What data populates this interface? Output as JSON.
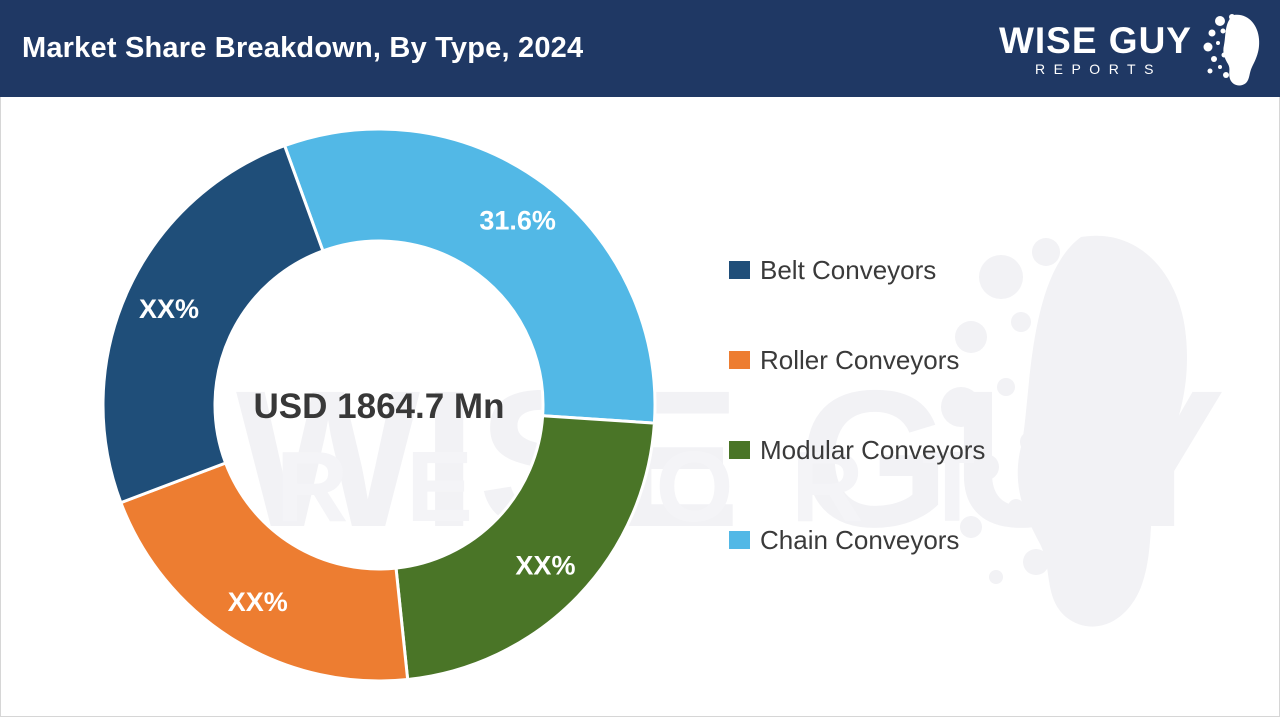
{
  "header": {
    "title": "Market Share Breakdown, By Type, 2024",
    "logo": {
      "line1": "WISE GUY",
      "line2": "REPORTS"
    }
  },
  "watermark": {
    "line1": "WISE GUY",
    "line2": "REPORTS"
  },
  "chart_data": {
    "type": "pie",
    "subtype": "donut",
    "title": "Market Share Breakdown, By Type, 2024",
    "center_label": "USD 1864.7 Mn",
    "start_angle_deg": 340,
    "legend_position": "right",
    "segments": [
      {
        "label": "Chain Conveyors",
        "display_value": "31.6%",
        "value_pct": 31.6,
        "color": "#52b8e6"
      },
      {
        "label": "Modular Conveyors",
        "display_value": "XX%",
        "value_pct": 22.3,
        "color": "#4a7527"
      },
      {
        "label": "Roller Conveyors",
        "display_value": "XX%",
        "value_pct": 20.9,
        "color": "#ed7d31"
      },
      {
        "label": "Belt Conveyors",
        "display_value": "XX%",
        "value_pct": 25.2,
        "color": "#1f4e79"
      }
    ],
    "legend": [
      {
        "label": "Belt Conveyors",
        "color": "#1f4e79"
      },
      {
        "label": "Roller Conveyors",
        "color": "#ed7d31"
      },
      {
        "label": "Modular Conveyors",
        "color": "#4a7527"
      },
      {
        "label": "Chain Conveyors",
        "color": "#52b8e6"
      }
    ]
  },
  "colors": {
    "header_bg": "#1f3864",
    "border_line": "#d6d6d6",
    "center_text": "#383838",
    "watermark": "#f2f2f5"
  }
}
